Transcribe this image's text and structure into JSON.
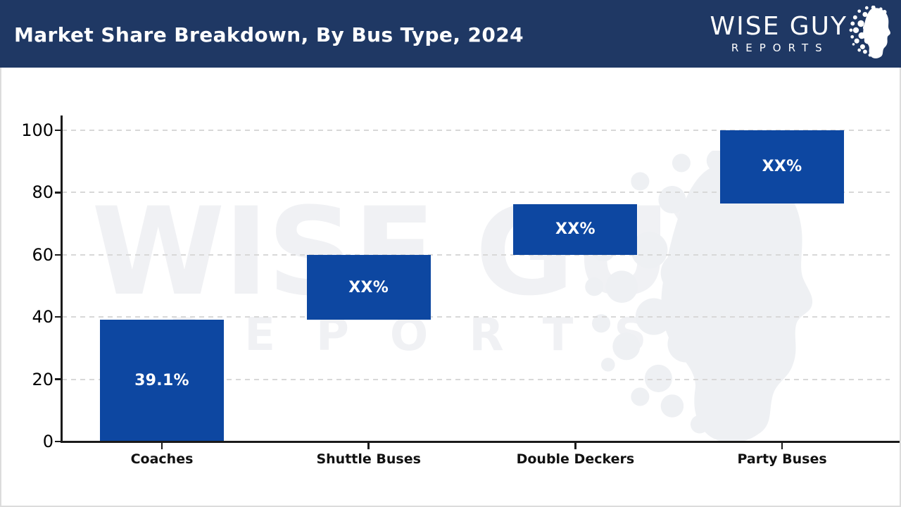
{
  "header": {
    "title": "Market Share Breakdown, By Bus Type, 2024",
    "logo": {
      "line1": "WISE GUY",
      "line2": "REPORTS"
    }
  },
  "watermark": {
    "line1": "WISE GUY",
    "line2": "REPORTS"
  },
  "chart_data": {
    "type": "bar",
    "subtype": "waterfall",
    "title": "Market Share Breakdown, By Bus Type, 2024",
    "categories": [
      "Coaches",
      "Shuttle Buses",
      "Double Deckers",
      "Party Buses"
    ],
    "segments": [
      {
        "category": "Coaches",
        "start": 0,
        "end": 39.1,
        "label": "39.1%"
      },
      {
        "category": "Shuttle Buses",
        "start": 39.1,
        "end": 59.9,
        "label": "XX%"
      },
      {
        "category": "Double Deckers",
        "start": 60.0,
        "end": 76.3,
        "label": "XX%"
      },
      {
        "category": "Party Buses",
        "start": 76.5,
        "end": 100.0,
        "label": "XX%"
      }
    ],
    "yticks": [
      0,
      20,
      40,
      60,
      80,
      100
    ],
    "ylim": [
      0,
      105
    ],
    "xlabel": "",
    "ylabel": "",
    "legend": "none",
    "grid": "horizontal-dashed",
    "colors": {
      "bar": "#0D47A1",
      "header_bg": "#1F3864",
      "grid": "#d8d8d8",
      "axis": "#1a1a1a",
      "bar_label": "#ffffff",
      "tick_label": "#000000"
    }
  }
}
